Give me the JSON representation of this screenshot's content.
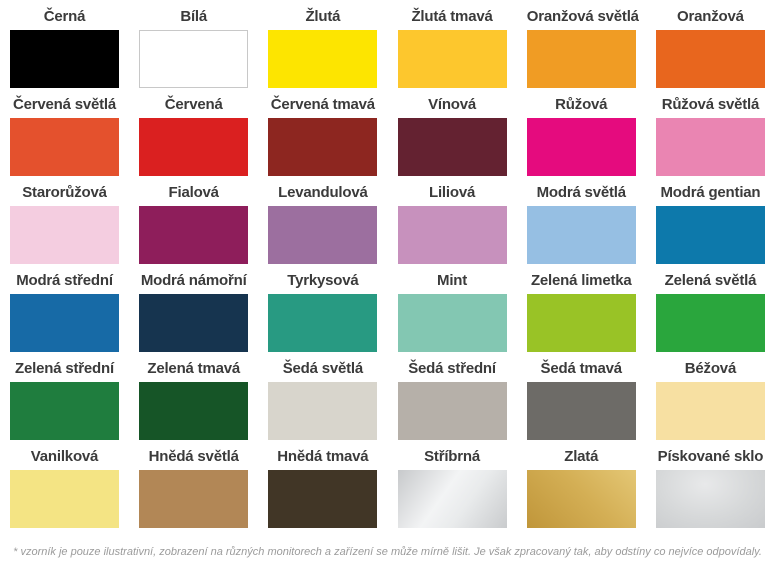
{
  "footer": {
    "note": "* vzorník je pouze ilustrativní, zobrazení na různých monitorech a zařízení se může mírně lišit. Je však zpracovaný tak, aby odstíny co nejvíce odpovídaly."
  },
  "label_color": "#3b3b3b",
  "background_color": "#ffffff",
  "swatches": [
    {
      "name": "Černá",
      "fill": {
        "kind": "solid",
        "color": "#000000"
      }
    },
    {
      "name": "Bílá",
      "fill": {
        "kind": "solid",
        "color": "#ffffff",
        "border": "#c8c8c8"
      }
    },
    {
      "name": "Žlutá",
      "fill": {
        "kind": "solid",
        "color": "#fde500"
      }
    },
    {
      "name": "Žlutá tmavá",
      "fill": {
        "kind": "solid",
        "color": "#fdc72d"
      }
    },
    {
      "name": "Oranžová světlá",
      "fill": {
        "kind": "solid",
        "color": "#f09c24"
      }
    },
    {
      "name": "Oranžová",
      "fill": {
        "kind": "solid",
        "color": "#e8661e"
      }
    },
    {
      "name": "Červená světlá",
      "fill": {
        "kind": "solid",
        "color": "#e4512d"
      }
    },
    {
      "name": "Červená",
      "fill": {
        "kind": "solid",
        "color": "#da2020"
      }
    },
    {
      "name": "Červená tmavá",
      "fill": {
        "kind": "solid",
        "color": "#8d2620"
      }
    },
    {
      "name": "Vínová",
      "fill": {
        "kind": "solid",
        "color": "#642231"
      }
    },
    {
      "name": "Růžová",
      "fill": {
        "kind": "solid",
        "color": "#e50b7e"
      }
    },
    {
      "name": "Růžová světlá",
      "fill": {
        "kind": "solid",
        "color": "#ea85b2"
      }
    },
    {
      "name": "Starorůžová",
      "fill": {
        "kind": "solid",
        "color": "#f4cde0"
      }
    },
    {
      "name": "Fialová",
      "fill": {
        "kind": "solid",
        "color": "#8e1e5b"
      }
    },
    {
      "name": "Levandulová",
      "fill": {
        "kind": "solid",
        "color": "#9c6f9f"
      }
    },
    {
      "name": "Liliová",
      "fill": {
        "kind": "solid",
        "color": "#c791bd"
      }
    },
    {
      "name": "Modrá světlá",
      "fill": {
        "kind": "solid",
        "color": "#96bfe3"
      }
    },
    {
      "name": "Modrá gentian",
      "fill": {
        "kind": "solid",
        "color": "#0d79ab"
      }
    },
    {
      "name": "Modrá střední",
      "fill": {
        "kind": "solid",
        "color": "#176aa6"
      }
    },
    {
      "name": "Modrá námořní",
      "fill": {
        "kind": "solid",
        "color": "#16344f"
      }
    },
    {
      "name": "Tyrkysová",
      "fill": {
        "kind": "solid",
        "color": "#289a82"
      }
    },
    {
      "name": "Mint",
      "fill": {
        "kind": "solid",
        "color": "#83c7b2"
      }
    },
    {
      "name": "Zelená limetka",
      "fill": {
        "kind": "solid",
        "color": "#99c326"
      }
    },
    {
      "name": "Zelená světlá",
      "fill": {
        "kind": "solid",
        "color": "#2aa63d"
      }
    },
    {
      "name": "Zelená střední",
      "fill": {
        "kind": "solid",
        "color": "#1f7d3e"
      }
    },
    {
      "name": "Zelená tmavá",
      "fill": {
        "kind": "solid",
        "color": "#165527"
      }
    },
    {
      "name": "Šedá světlá",
      "fill": {
        "kind": "solid",
        "color": "#d8d5cc"
      }
    },
    {
      "name": "Šedá střední",
      "fill": {
        "kind": "solid",
        "color": "#b6b0a9"
      }
    },
    {
      "name": "Šedá tmavá",
      "fill": {
        "kind": "solid",
        "color": "#6d6b67"
      }
    },
    {
      "name": "Béžová",
      "fill": {
        "kind": "solid",
        "color": "#f7e0a2"
      }
    },
    {
      "name": "Vanilková",
      "fill": {
        "kind": "solid",
        "color": "#f4e484"
      }
    },
    {
      "name": "Hnědá světlá",
      "fill": {
        "kind": "solid",
        "color": "#b28756"
      }
    },
    {
      "name": "Hnědá tmavá",
      "fill": {
        "kind": "solid",
        "color": "#413626"
      }
    },
    {
      "name": "Stříbrná",
      "fill": {
        "kind": "linear",
        "angle": 125,
        "stops": [
          "#c7c9cb 0%",
          "#f3f4f5 42%",
          "#e9ebec 62%",
          "#c9cbcd 100%"
        ]
      }
    },
    {
      "name": "Zlatá",
      "fill": {
        "kind": "linear",
        "angle": 45,
        "stops": [
          "#c0963a 0%",
          "#d4af55 55%",
          "#e4c775 100%"
        ]
      }
    },
    {
      "name": "Pískované sklo",
      "fill": {
        "kind": "radial",
        "at": "45% 25%",
        "stops": [
          "#e8e9ea 0%",
          "#d6d8d9 55%",
          "#c9cbcd 100%"
        ]
      }
    }
  ]
}
